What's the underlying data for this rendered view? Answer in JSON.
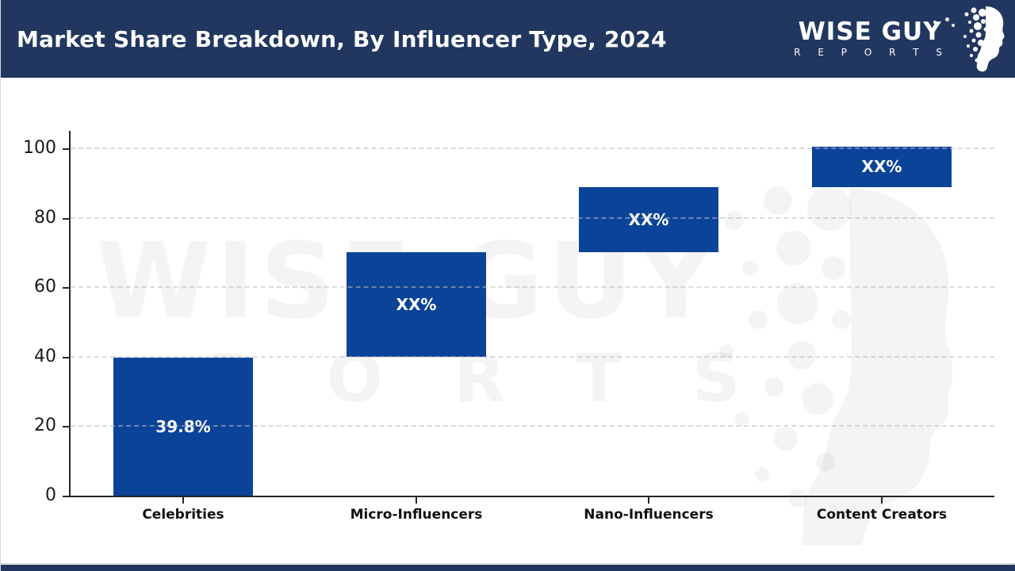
{
  "header": {
    "title": "Market Share Breakdown, By Influencer Type, 2024",
    "brand": {
      "line1": "WISE GUY",
      "line2": "R E P O R T S"
    }
  },
  "watermark": {
    "line1": "WISE GUY",
    "line2": "P O R T S"
  },
  "chart_data": {
    "type": "bar",
    "variant": "waterfall-floating-bars",
    "title": "Market Share Breakdown, By Influencer Type, 2024",
    "categories": [
      "Celebrities",
      "Micro-Influencers",
      "Nano-Influencers",
      "Content Creators"
    ],
    "segments": [
      {
        "category": "Celebrities",
        "from": 0,
        "to": 39.8,
        "label": "39.8%"
      },
      {
        "category": "Micro-Influencers",
        "from": 40,
        "to": 70,
        "label": "XX%"
      },
      {
        "category": "Nano-Influencers",
        "from": 70,
        "to": 88.8,
        "label": "XX%"
      },
      {
        "category": "Content Creators",
        "from": 88.9,
        "to": 100.4,
        "label": "XX%"
      }
    ],
    "y_ticks": [
      0,
      20,
      40,
      60,
      80,
      100
    ],
    "ylim": [
      0,
      105
    ],
    "xlabel": "",
    "ylabel": "",
    "grid": "horizontal-dashed",
    "legend": "none",
    "bar_color": "#0b4399",
    "bar_label_color": "#ffffff",
    "axis_color": "#262626"
  }
}
